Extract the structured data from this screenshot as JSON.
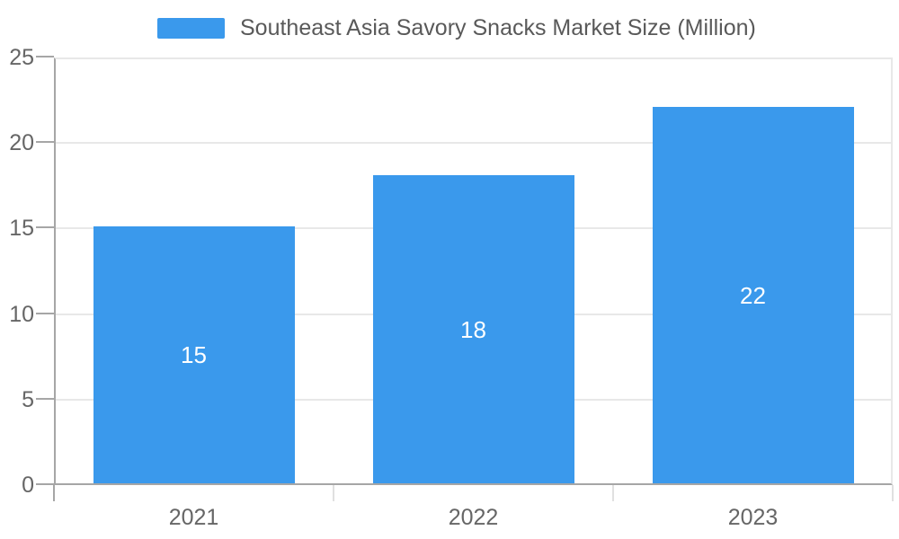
{
  "legend": {
    "label": "Southeast Asia Savory Snacks Market Size (Million)"
  },
  "colors": {
    "bar": "#3A99EC",
    "axis_line": "#a6a6a6",
    "gridline": "#e8e8e8",
    "x_tick": "#e0e0e0",
    "tick_text": "#666666",
    "legend_text": "#595959",
    "data_label_text": "#ffffff",
    "background": "#ffffff"
  },
  "chart_data": {
    "type": "bar",
    "title": "Southeast Asia Savory Snacks Market Size (Million)",
    "categories": [
      "2021",
      "2022",
      "2023"
    ],
    "values": [
      15,
      18,
      22
    ],
    "data_labels": [
      "15",
      "18",
      "22"
    ],
    "data_label_position": "inside-middle",
    "xlabel": "",
    "ylabel": "",
    "ylim": [
      0,
      25
    ],
    "yticks": [
      0,
      5,
      10,
      15,
      20,
      25
    ],
    "ytick_labels": [
      "0",
      "5",
      "10",
      "15",
      "20",
      "25"
    ],
    "grid": true,
    "legend_position": "top-center",
    "bar_color": "#3A99EC"
  }
}
